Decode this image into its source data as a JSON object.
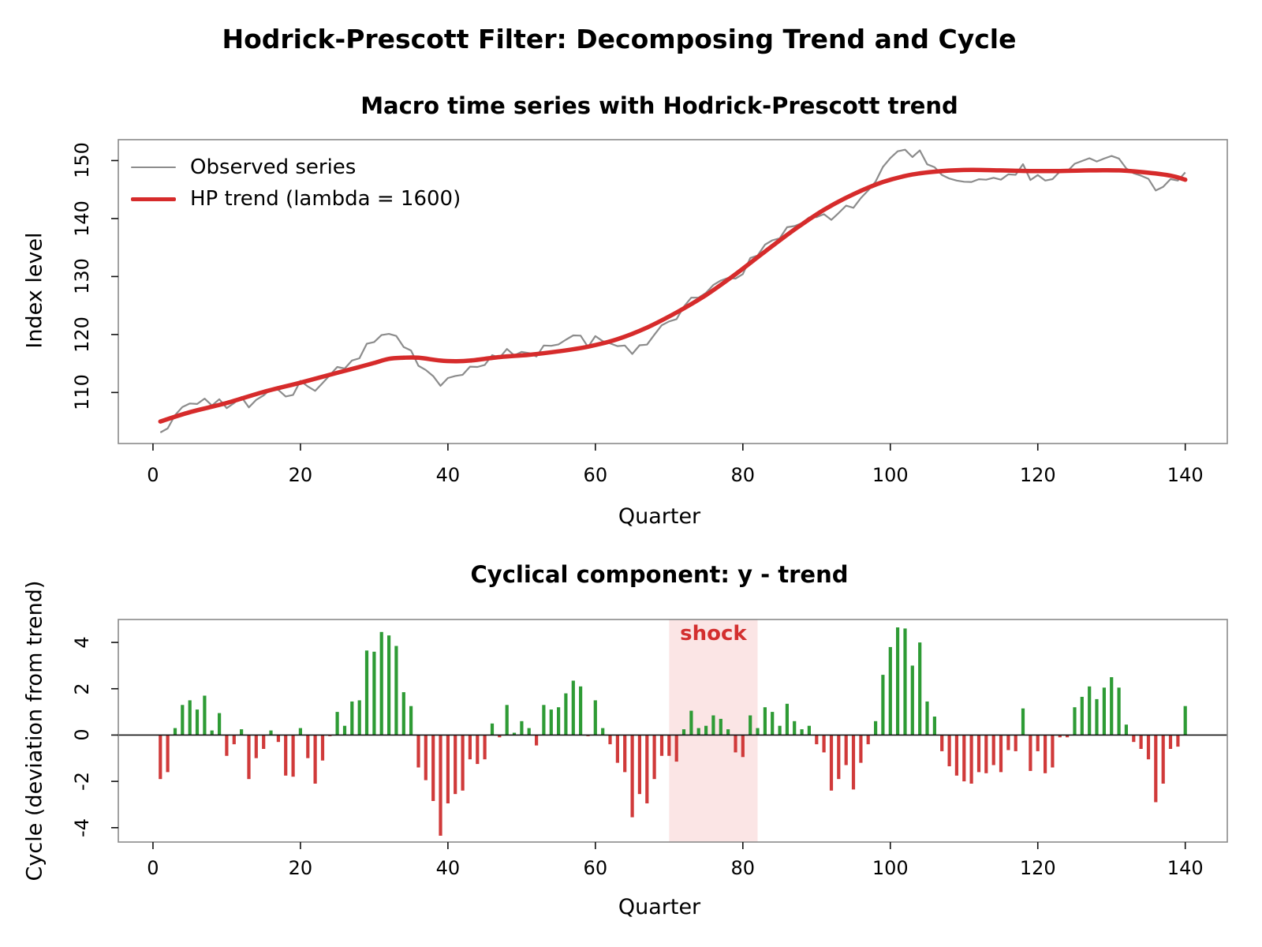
{
  "page": {
    "title": "Hodrick-Prescott Filter: Decomposing Trend and Cycle"
  },
  "colors": {
    "observed": "#8c8c8c",
    "trend": "#d62b2b",
    "bar_positive": "#2e9b35",
    "bar_negative": "#d03a3a",
    "shock_band": "#fbe5e5",
    "shock_text": "#d32f2f",
    "frame": "#8a8a8a",
    "axis": "#111111"
  },
  "chart_data": [
    {
      "type": "line",
      "title": "Macro time series with Hodrick-Prescott trend",
      "xlabel": "Quarter",
      "ylabel": "Index level",
      "xlim": [
        -4.7,
        145.7
      ],
      "ylim": [
        101.2,
        153.6
      ],
      "x_ticks": [
        0,
        20,
        40,
        60,
        80,
        100,
        120,
        140
      ],
      "y_ticks": [
        110,
        120,
        130,
        140,
        150
      ],
      "grid": false,
      "legend_position": "top-left",
      "legend": [
        {
          "label": "Observed series",
          "series": "observed"
        },
        {
          "label": "HP trend (lambda = 1600)",
          "series": "trend"
        }
      ],
      "series": {
        "observed": {
          "name": "Observed series",
          "definition": "trend + cycle"
        },
        "trend": {
          "name": "HP trend (lambda = 1600)",
          "anchors": [
            [
              1,
              105.0
            ],
            [
              5,
              106.6
            ],
            [
              10,
              108.2
            ],
            [
              15,
              110.1
            ],
            [
              20,
              111.7
            ],
            [
              25,
              113.4
            ],
            [
              28,
              114.4
            ],
            [
              30,
              115.1
            ],
            [
              32,
              115.8
            ],
            [
              34,
              116.0
            ],
            [
              36,
              116.0
            ],
            [
              39,
              115.5
            ],
            [
              41,
              115.4
            ],
            [
              43,
              115.5
            ],
            [
              47,
              116.1
            ],
            [
              51,
              116.5
            ],
            [
              55,
              117.1
            ],
            [
              59,
              117.9
            ],
            [
              63,
              119.2
            ],
            [
              67,
              121.2
            ],
            [
              71,
              123.8
            ],
            [
              75,
              126.8
            ],
            [
              79,
              130.4
            ],
            [
              83,
              134.3
            ],
            [
              87,
              138.1
            ],
            [
              91,
              141.5
            ],
            [
              95,
              144.2
            ],
            [
              99,
              146.3
            ],
            [
              103,
              147.6
            ],
            [
              107,
              148.2
            ],
            [
              111,
              148.4
            ],
            [
              115,
              148.3
            ],
            [
              119,
              148.2
            ],
            [
              123,
              148.2
            ],
            [
              127,
              148.3
            ],
            [
              131,
              148.3
            ],
            [
              135,
              147.9
            ],
            [
              138,
              147.4
            ],
            [
              140,
              146.7
            ]
          ]
        }
      }
    },
    {
      "type": "bar",
      "title": "Cyclical component: y - trend",
      "xlabel": "Quarter",
      "ylabel": "Cycle (deviation from trend)",
      "xlim": [
        -4.7,
        145.7
      ],
      "ylim": [
        -4.62,
        4.99
      ],
      "x_ticks": [
        0,
        20,
        40,
        60,
        80,
        100,
        120,
        140
      ],
      "y_ticks": [
        -4,
        -2,
        0,
        2,
        4
      ],
      "grid": false,
      "x_start": 1,
      "cycle": [
        -1.9,
        -1.6,
        0.3,
        1.3,
        1.5,
        1.1,
        1.7,
        0.2,
        0.95,
        -0.9,
        -0.4,
        0.25,
        -1.9,
        -1.0,
        -0.6,
        0.2,
        -0.3,
        -1.75,
        -1.8,
        0.3,
        -1.0,
        -2.1,
        -1.1,
        -0.05,
        1.0,
        0.4,
        1.45,
        1.5,
        3.65,
        3.6,
        4.45,
        4.3,
        3.85,
        1.85,
        1.25,
        -1.4,
        -1.95,
        -2.85,
        -4.35,
        -2.95,
        -2.55,
        -2.4,
        -1.05,
        -1.25,
        -1.05,
        0.5,
        -0.1,
        1.3,
        0.1,
        0.6,
        0.3,
        -0.45,
        1.3,
        1.1,
        1.2,
        1.8,
        2.35,
        2.1,
        -0.05,
        1.5,
        0.3,
        -0.4,
        -1.2,
        -1.6,
        -3.55,
        -2.55,
        -2.95,
        -1.9,
        -0.9,
        -0.9,
        -1.15,
        0.25,
        1.05,
        0.3,
        0.4,
        0.85,
        0.7,
        0.25,
        -0.75,
        -0.95,
        0.85,
        0.3,
        1.2,
        1.0,
        0.4,
        1.35,
        0.6,
        0.25,
        0.4,
        -0.4,
        -0.75,
        -2.4,
        -1.9,
        -1.3,
        -2.35,
        -1.2,
        -0.4,
        0.6,
        2.6,
        3.8,
        4.65,
        4.6,
        3.0,
        4.0,
        1.45,
        0.8,
        -0.7,
        -1.35,
        -1.75,
        -2.0,
        -2.1,
        -1.6,
        -1.65,
        -1.3,
        -1.6,
        -0.65,
        -0.7,
        1.15,
        -1.55,
        -0.7,
        -1.65,
        -1.4,
        -0.1,
        -0.1,
        1.2,
        1.65,
        2.1,
        1.55,
        2.05,
        2.5,
        2.05,
        0.45,
        -0.3,
        -0.6,
        -1.05,
        -2.9,
        -2.1,
        -0.6,
        -0.5,
        1.25
      ],
      "shock_band": {
        "label": "shock",
        "from": 70,
        "to": 82
      }
    }
  ]
}
